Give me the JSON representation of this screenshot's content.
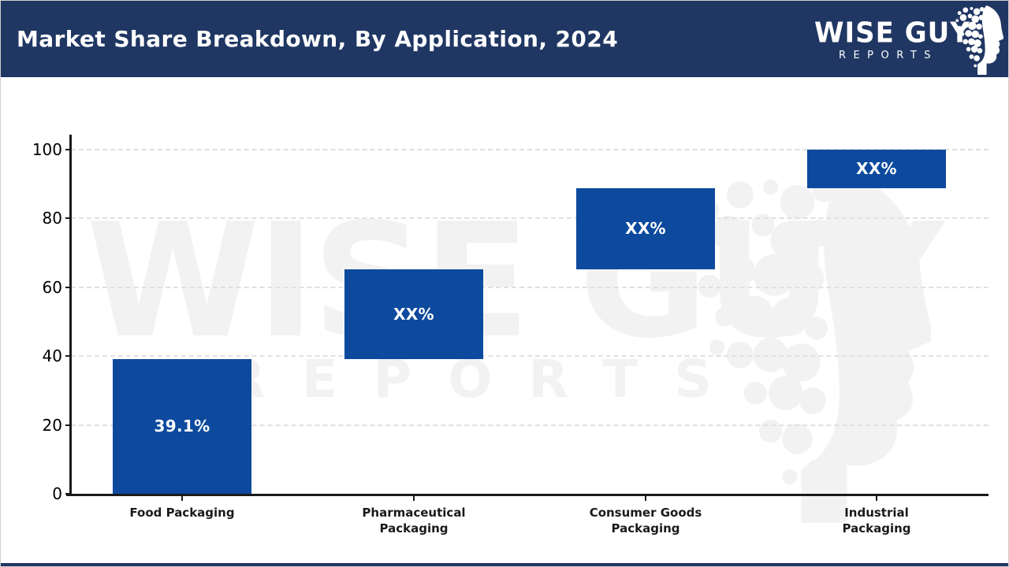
{
  "header": {
    "title": "Market Share Breakdown, By Application, 2024",
    "brand_name": "WISE GUY",
    "brand_sub": "REPORTS"
  },
  "watermark": {
    "line1": "WISE GUY",
    "line2": "REPORTS"
  },
  "colors": {
    "header_bg": "#203763",
    "bar_blue": "#0d4a9e",
    "grid_gray": "#e0e0e0",
    "watermark_gray": "#f2f2f2",
    "axis_black": "#1a1a1a",
    "footer_bg": "#203763"
  },
  "chart_data": {
    "type": "bar",
    "subtype": "floating-waterfall",
    "title": "Market Share Breakdown, By Application, 2024",
    "categories": [
      "Food Packaging",
      "Pharmaceutical Packaging",
      "Consumer Goods Packaging",
      "Industrial Packaging"
    ],
    "category_lines": [
      [
        "Food Packaging"
      ],
      [
        "Pharmaceutical",
        "Packaging"
      ],
      [
        "Consumer Goods",
        "Packaging"
      ],
      [
        "Industrial",
        "Packaging"
      ]
    ],
    "series": [
      {
        "name": "Market Share (%)",
        "segments": [
          {
            "category": "Food Packaging",
            "from": 0,
            "to": 39.1,
            "label": "39.1%"
          },
          {
            "category": "Pharmaceutical Packaging",
            "from": 39.1,
            "to": 65.2,
            "label": "XX%"
          },
          {
            "category": "Consumer Goods Packaging",
            "from": 65.2,
            "to": 88.8,
            "label": "XX%"
          },
          {
            "category": "Industrial Packaging",
            "from": 88.8,
            "to": 100,
            "label": "XX%"
          }
        ]
      }
    ],
    "value_labels": [
      "39.1%",
      "XX%",
      "XX%",
      "XX%"
    ],
    "xlabel": "",
    "ylabel": "",
    "ylim": [
      0,
      104
    ],
    "yticks": [
      0,
      20,
      40,
      60,
      80,
      100
    ],
    "grid": "horizontal dashed",
    "legend": "none",
    "bar_color": "#0d4a9e"
  }
}
